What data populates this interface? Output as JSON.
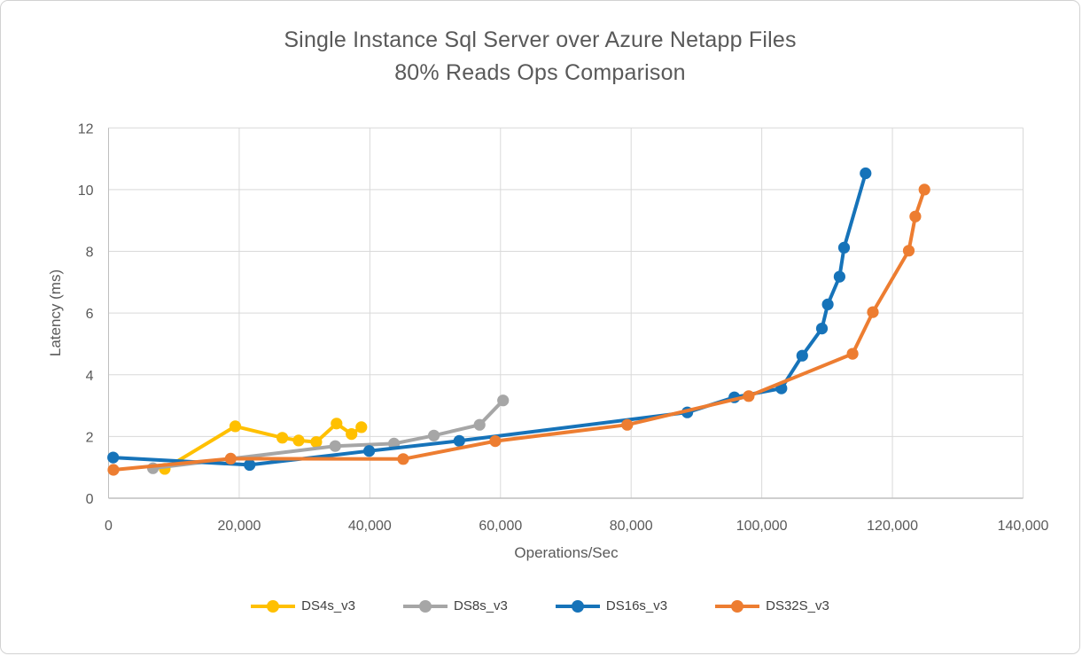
{
  "chart_data": {
    "type": "line",
    "title_lines": [
      "Single Instance Sql Server over Azure Netapp Files",
      "80% Reads Ops Comparison"
    ],
    "xlabel": "Operations/Sec",
    "ylabel": "Latency (ms)",
    "xlim": [
      0,
      140000
    ],
    "ylim": [
      0,
      12
    ],
    "x_ticks": [
      0,
      20000,
      40000,
      60000,
      80000,
      100000,
      120000,
      140000
    ],
    "x_tick_labels": [
      "0",
      "20,000",
      "40,000",
      "60,000",
      "80,000",
      "100,000",
      "120,000",
      "140,000"
    ],
    "y_ticks": [
      0,
      2,
      4,
      6,
      8,
      10,
      12
    ],
    "y_tick_labels": [
      "0",
      "2",
      "4",
      "6",
      "8",
      "10",
      "12"
    ],
    "grid": true,
    "legend_position": "bottom",
    "series": [
      {
        "name": "DS4s_v3",
        "color": "#FFC000",
        "points": [
          [
            8600,
            0.95
          ],
          [
            19400,
            2.33
          ],
          [
            26600,
            1.96
          ],
          [
            29100,
            1.87
          ],
          [
            31800,
            1.82
          ],
          [
            34900,
            2.42
          ],
          [
            37200,
            2.08
          ],
          [
            38700,
            2.3
          ]
        ]
      },
      {
        "name": "DS8s_v3",
        "color": "#A6A6A6",
        "points": [
          [
            6800,
            0.97
          ],
          [
            34700,
            1.69
          ],
          [
            43700,
            1.77
          ],
          [
            49800,
            2.03
          ],
          [
            56800,
            2.38
          ],
          [
            60400,
            3.17
          ]
        ]
      },
      {
        "name": "DS16s_v3",
        "color": "#1673B9",
        "points": [
          [
            700,
            1.32
          ],
          [
            21600,
            1.08
          ],
          [
            39900,
            1.53
          ],
          [
            53700,
            1.86
          ],
          [
            88600,
            2.78
          ],
          [
            95800,
            3.27
          ],
          [
            103000,
            3.56
          ],
          [
            106200,
            4.62
          ],
          [
            109200,
            5.5
          ],
          [
            110100,
            6.28
          ],
          [
            111900,
            7.18
          ],
          [
            112600,
            8.12
          ],
          [
            115900,
            10.53
          ]
        ]
      },
      {
        "name": "DS32S_v3",
        "color": "#ED7D31",
        "points": [
          [
            750,
            0.92
          ],
          [
            18700,
            1.28
          ],
          [
            45100,
            1.27
          ],
          [
            59200,
            1.85
          ],
          [
            79400,
            2.38
          ],
          [
            98000,
            3.31
          ],
          [
            113900,
            4.68
          ],
          [
            117000,
            6.03
          ],
          [
            122500,
            8.02
          ],
          [
            123500,
            9.13
          ],
          [
            124900,
            10.0
          ]
        ]
      }
    ],
    "style": {
      "grid_color": "#D9D9D9",
      "axis_color": "#BFBFBF",
      "text_color": "#595959",
      "legend_text_color": "#404040",
      "background": "#FFFFFF",
      "frame_border_color": "#D2D2D2"
    }
  }
}
